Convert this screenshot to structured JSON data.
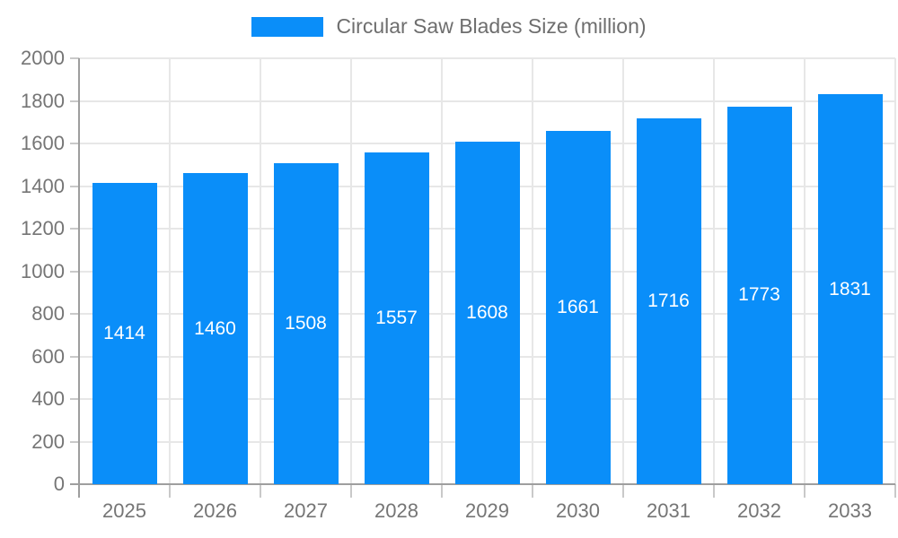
{
  "legend": {
    "label": "Circular Saw Blades Size (million)"
  },
  "colors": {
    "bar": "#0a8ef9",
    "grid": "#e7e7e7",
    "axis": "#9e9e9e",
    "tick": "#c9c9c9",
    "tick_label": "#757575",
    "legend_label": "#6e6e6e",
    "value_label": "#ffffff",
    "background": "#ffffff"
  },
  "chart_data": {
    "type": "bar",
    "title": "Circular Saw Blades Size (million)",
    "categories": [
      "2025",
      "2026",
      "2027",
      "2028",
      "2029",
      "2030",
      "2031",
      "2032",
      "2033"
    ],
    "values": [
      1414,
      1460,
      1508,
      1557,
      1608,
      1661,
      1716,
      1773,
      1831
    ],
    "xlabel": "",
    "ylabel": "",
    "ylim": [
      0,
      2000
    ],
    "ytick_step": 200,
    "ytick_labels": [
      "0",
      "200",
      "400",
      "600",
      "800",
      "1000",
      "1200",
      "1400",
      "1600",
      "1800",
      "2000"
    ],
    "grid": true,
    "legend_position": "top",
    "value_labels_inside_bars": true
  }
}
